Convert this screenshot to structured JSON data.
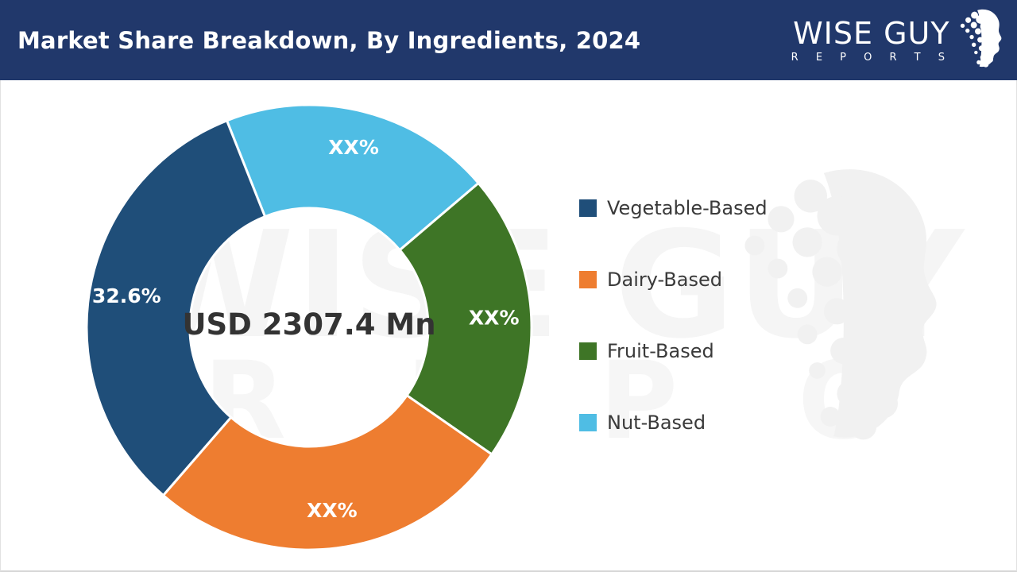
{
  "header": {
    "title": "Market Share Breakdown, By Ingredients, 2024",
    "logo": {
      "name": "WISE GUY",
      "tagline": "R E P O R T S"
    }
  },
  "watermark": {
    "line1": "WISE GUY",
    "line2": "R E P O R T S"
  },
  "colors": {
    "header_bg": "#21386B",
    "header_text": "#FFFFFF",
    "center_text": "#333333",
    "slice_label_text": "#FFFFFF",
    "legend_text": "#3A3A3A",
    "page_bg": "#FFFFFF"
  },
  "chart_data": {
    "type": "donut",
    "title": "Market Share Breakdown, By Ingredients, 2024",
    "center_label": "USD 2307.4 Mn",
    "unit": "percent of market share",
    "start_angle_deg": -21.7,
    "draw_order": [
      "Nut-Based",
      "Fruit-Based",
      "Dairy-Based",
      "Vegetable-Based"
    ],
    "legend_position": "right",
    "segments": [
      {
        "name": "Vegetable-Based",
        "slice_label": "32.6%",
        "value_pct_est": 32.6,
        "color": "#1F4E79"
      },
      {
        "name": "Dairy-Based",
        "slice_label": "XX%",
        "value_pct_est": 26.7,
        "color": "#EE7D30"
      },
      {
        "name": "Fruit-Based",
        "slice_label": "XX%",
        "value_pct_est": 20.9,
        "color": "#3E7526"
      },
      {
        "name": "Nut-Based",
        "slice_label": "XX%",
        "value_pct_est": 19.8,
        "color": "#4FBDE4"
      }
    ]
  }
}
